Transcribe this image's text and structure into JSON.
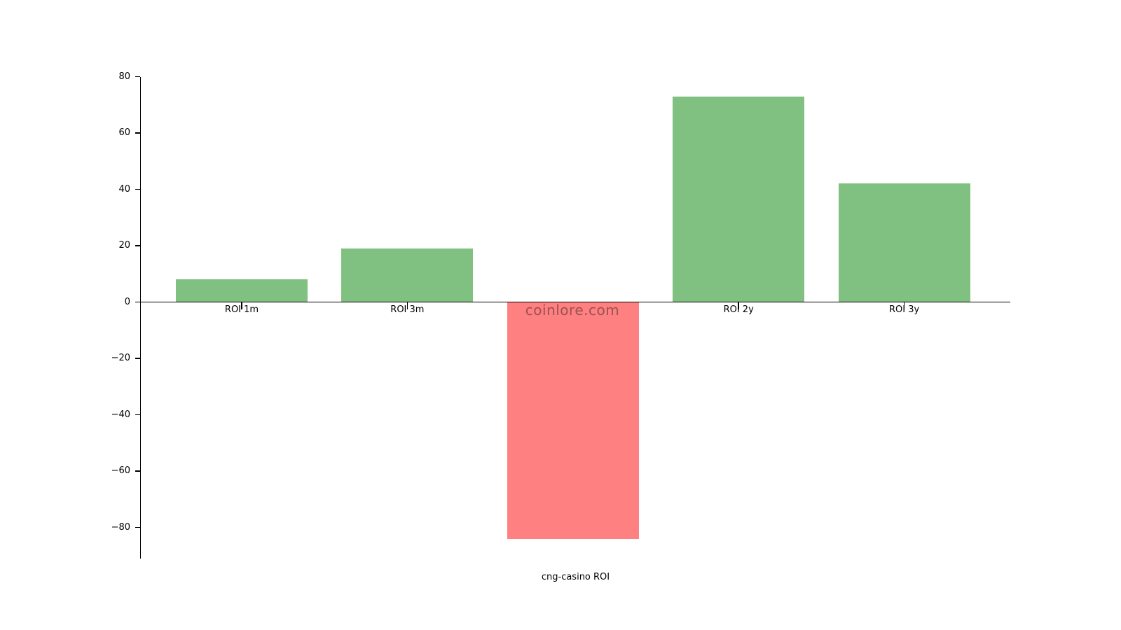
{
  "page": {
    "background": "#ffffff"
  },
  "chart_data": {
    "type": "bar",
    "title": "cng-casino ROI",
    "watermark": "coinlore.com",
    "categories": [
      "ROI 1m",
      "ROI 3m",
      "",
      "ROI 2y",
      "ROI 3y"
    ],
    "values": [
      8,
      19,
      -84,
      73,
      42
    ],
    "bar_colors": [
      "#80c080",
      "#80c080",
      "#ff8080",
      "#80c080",
      "#80c080"
    ],
    "positive_color": "#80c080",
    "negative_color": "#ff8080",
    "yticks": [
      80,
      60,
      40,
      20,
      0,
      -20,
      -40,
      -60,
      -80
    ],
    "ytick_labels": [
      "80",
      "60",
      "40",
      "20",
      "0",
      "−20",
      "−40",
      "−60",
      "−80"
    ],
    "ylim": [
      -91,
      80
    ],
    "xlabel": "",
    "ylabel": "",
    "grid": false,
    "legend": "none",
    "axis_color": "#000000",
    "tick_label_color": "#000000",
    "watermark_color": "#9b5151"
  }
}
